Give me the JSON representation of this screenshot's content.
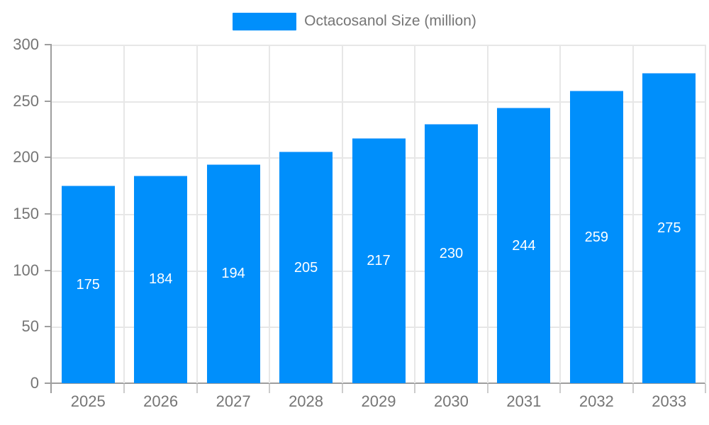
{
  "legend": {
    "label": "Octacosanol Size (million)"
  },
  "chart_data": {
    "type": "bar",
    "title": "",
    "categories": [
      "2025",
      "2026",
      "2027",
      "2028",
      "2029",
      "2030",
      "2031",
      "2032",
      "2033"
    ],
    "series": [
      {
        "name": "Octacosanol Size (million)",
        "values": [
          175,
          184,
          194,
          205,
          217,
          230,
          244,
          259,
          275
        ]
      }
    ],
    "xlabel": "",
    "ylabel": "",
    "ylim": [
      0,
      300
    ],
    "ytick_step": 50,
    "y_tick_labels": [
      "0",
      "50",
      "100",
      "150",
      "200",
      "250",
      "300"
    ],
    "grid": true,
    "legend_position": "top",
    "bar_labels": [
      "175",
      "184",
      "194",
      "205",
      "217",
      "230",
      "244",
      "259",
      "275"
    ]
  },
  "colors": {
    "bar": "#008FFB",
    "bar_top_edge": "#7EC2FD",
    "bar_label_text": "#FFFFFF",
    "axis_line": "#9E9E9E",
    "gridline": "#E7E7E7",
    "tick": "#CCCCCC",
    "axis_text": "#757575",
    "legend_text": "#757575",
    "background": "#FFFFFF"
  }
}
